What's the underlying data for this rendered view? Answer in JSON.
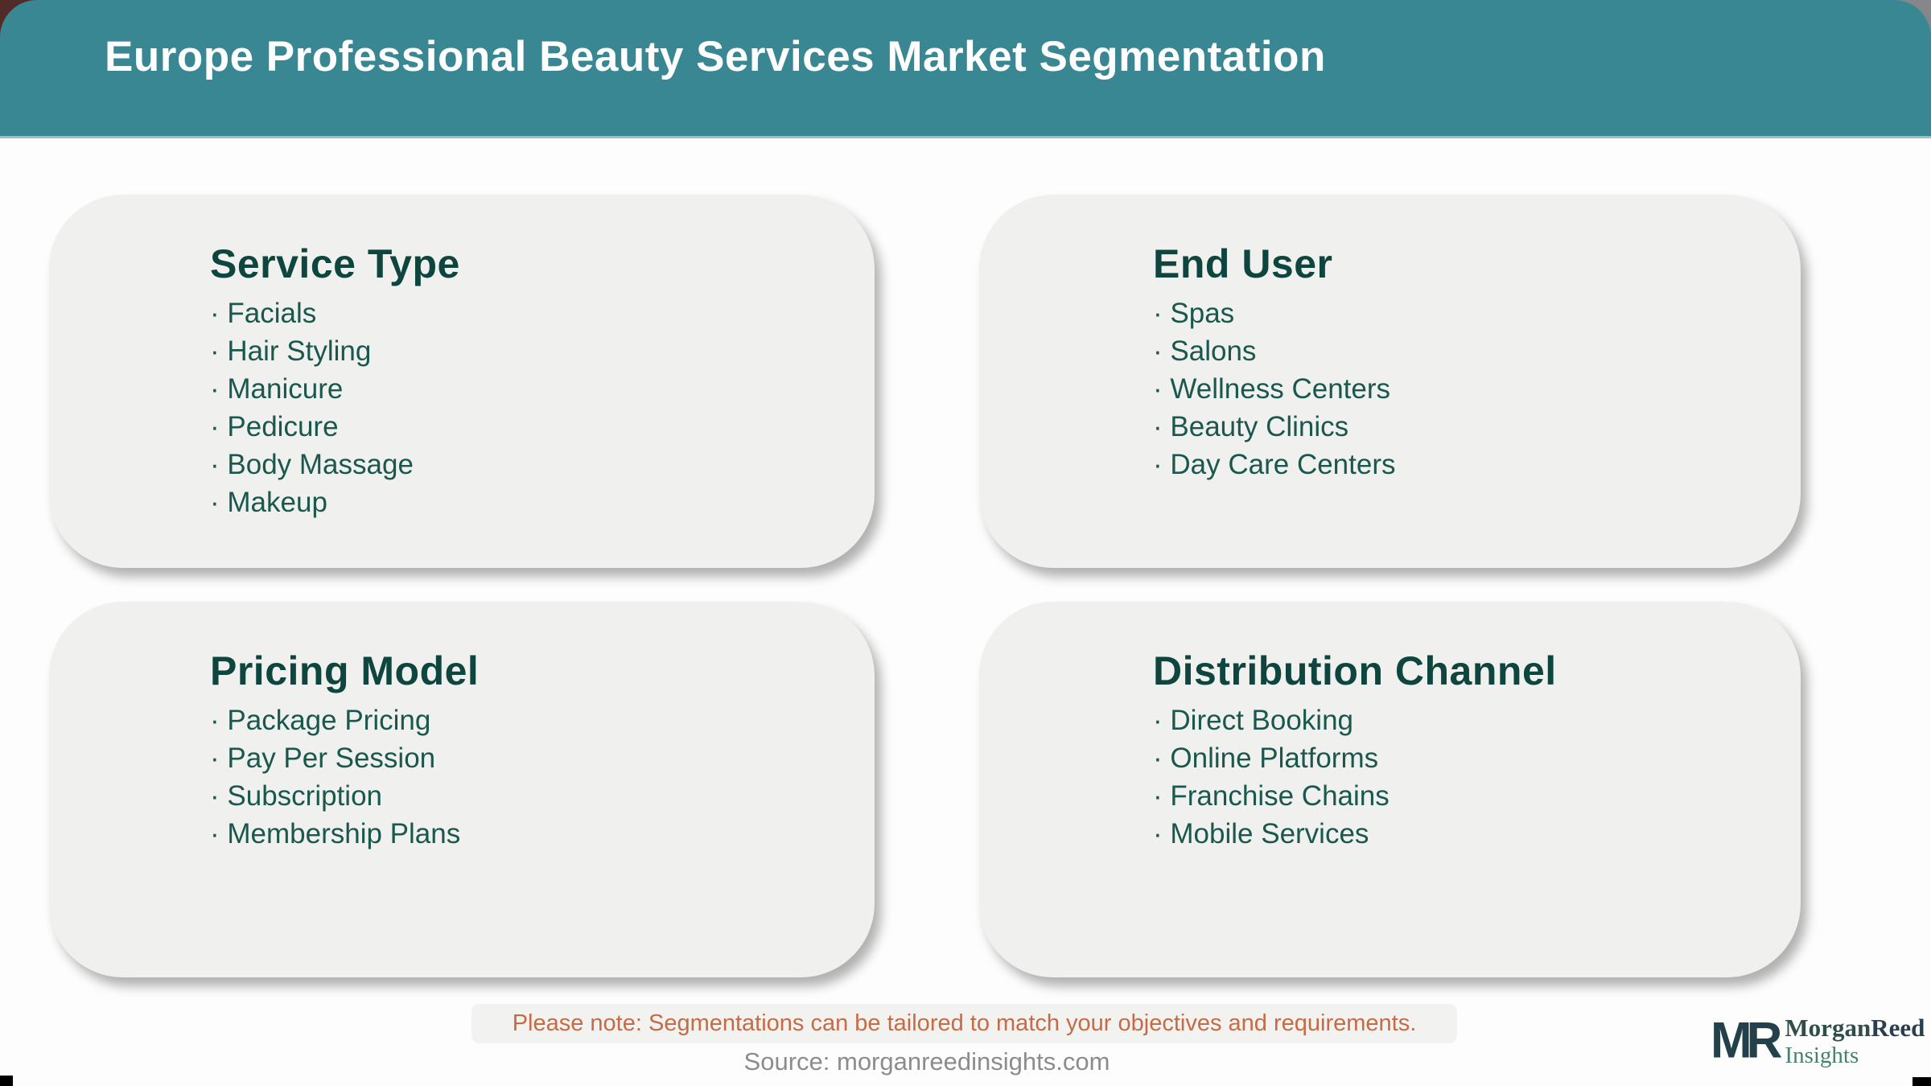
{
  "header": {
    "title": "Europe Professional Beauty Services Market Segmentation"
  },
  "cards": [
    {
      "title": "Service Type",
      "items": [
        "Facials",
        "Hair Styling",
        "Manicure",
        "Pedicure",
        "Body Massage",
        "Makeup"
      ]
    },
    {
      "title": "End User",
      "items": [
        "Spas",
        "Salons",
        "Wellness Centers",
        "Beauty Clinics",
        "Day Care Centers"
      ]
    },
    {
      "title": "Pricing Model",
      "items": [
        "Package Pricing",
        "Pay Per Session",
        "Subscription",
        "Membership Plans"
      ]
    },
    {
      "title": "Distribution Channel",
      "items": [
        "Direct Booking",
        "Online Platforms",
        "Franchise Chains",
        "Mobile Services"
      ]
    }
  ],
  "footer": {
    "note": "Please note: Segmentations can be tailored to match your objectives and requirements.",
    "source": "Source: morganreedinsights.com"
  },
  "logo": {
    "monogram": "MR",
    "brand_first": "Morgan",
    "brand_second": "Reed",
    "brand_sub": "Insights"
  },
  "colors": {
    "header_teal": "#3a8794",
    "header_divider": "#9cbfc4",
    "card_background": "#f0f0ef",
    "card_title_green": "#0e453e",
    "card_item_green": "#1a574d",
    "note_orange": "#c66b44",
    "note_background": "#f2f2f0",
    "source_gray": "#8c8c8c",
    "logo_monogram": "#22414b",
    "logo_morgan": "#2f4e4a",
    "logo_reed": "#2b3e4e",
    "logo_insights": "#488070",
    "corner_top_left": "#512b27",
    "corner_top_right": "#85878a"
  }
}
